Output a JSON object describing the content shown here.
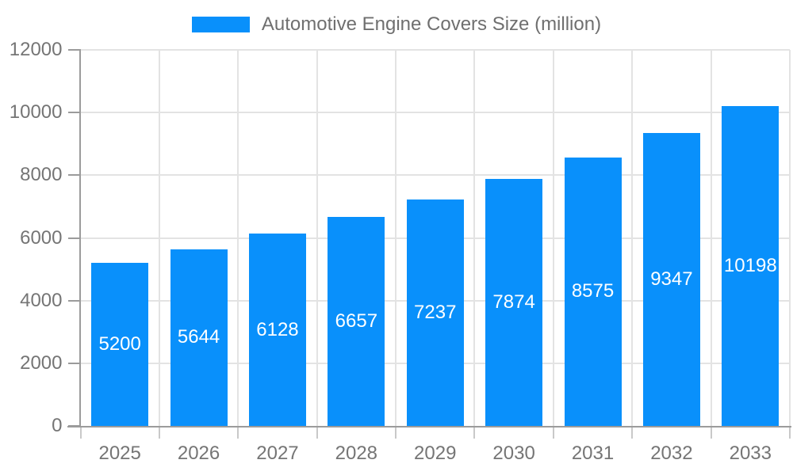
{
  "legend": {
    "label": "Automotive Engine Covers Size (million)"
  },
  "chart_data": {
    "type": "bar",
    "title": "Automotive Engine Covers Size (million)",
    "categories": [
      "2025",
      "2026",
      "2027",
      "2028",
      "2029",
      "2030",
      "2031",
      "2032",
      "2033"
    ],
    "series": [
      {
        "name": "Automotive Engine Covers Size (million)",
        "values": [
          5200,
          5644,
          6128,
          6657,
          7237,
          7874,
          8575,
          9347,
          10198
        ]
      }
    ],
    "value_labels_visible": true,
    "xlabel": "",
    "ylabel": "",
    "ylim": [
      0,
      12000
    ],
    "y_ticks": [
      0,
      2000,
      4000,
      6000,
      8000,
      10000,
      12000
    ],
    "grid": "both",
    "legend_position": "top-center",
    "colors": {
      "bar": "#0990FB",
      "value_label": "#FFFFFF",
      "axis_text": "#757575",
      "legend_text": "#6F6F6F",
      "axis_line": "#9B9B9B",
      "gridline": "#E3E3E3",
      "x_tick": "#C9C9C9",
      "background": "#FFFFFF"
    }
  }
}
